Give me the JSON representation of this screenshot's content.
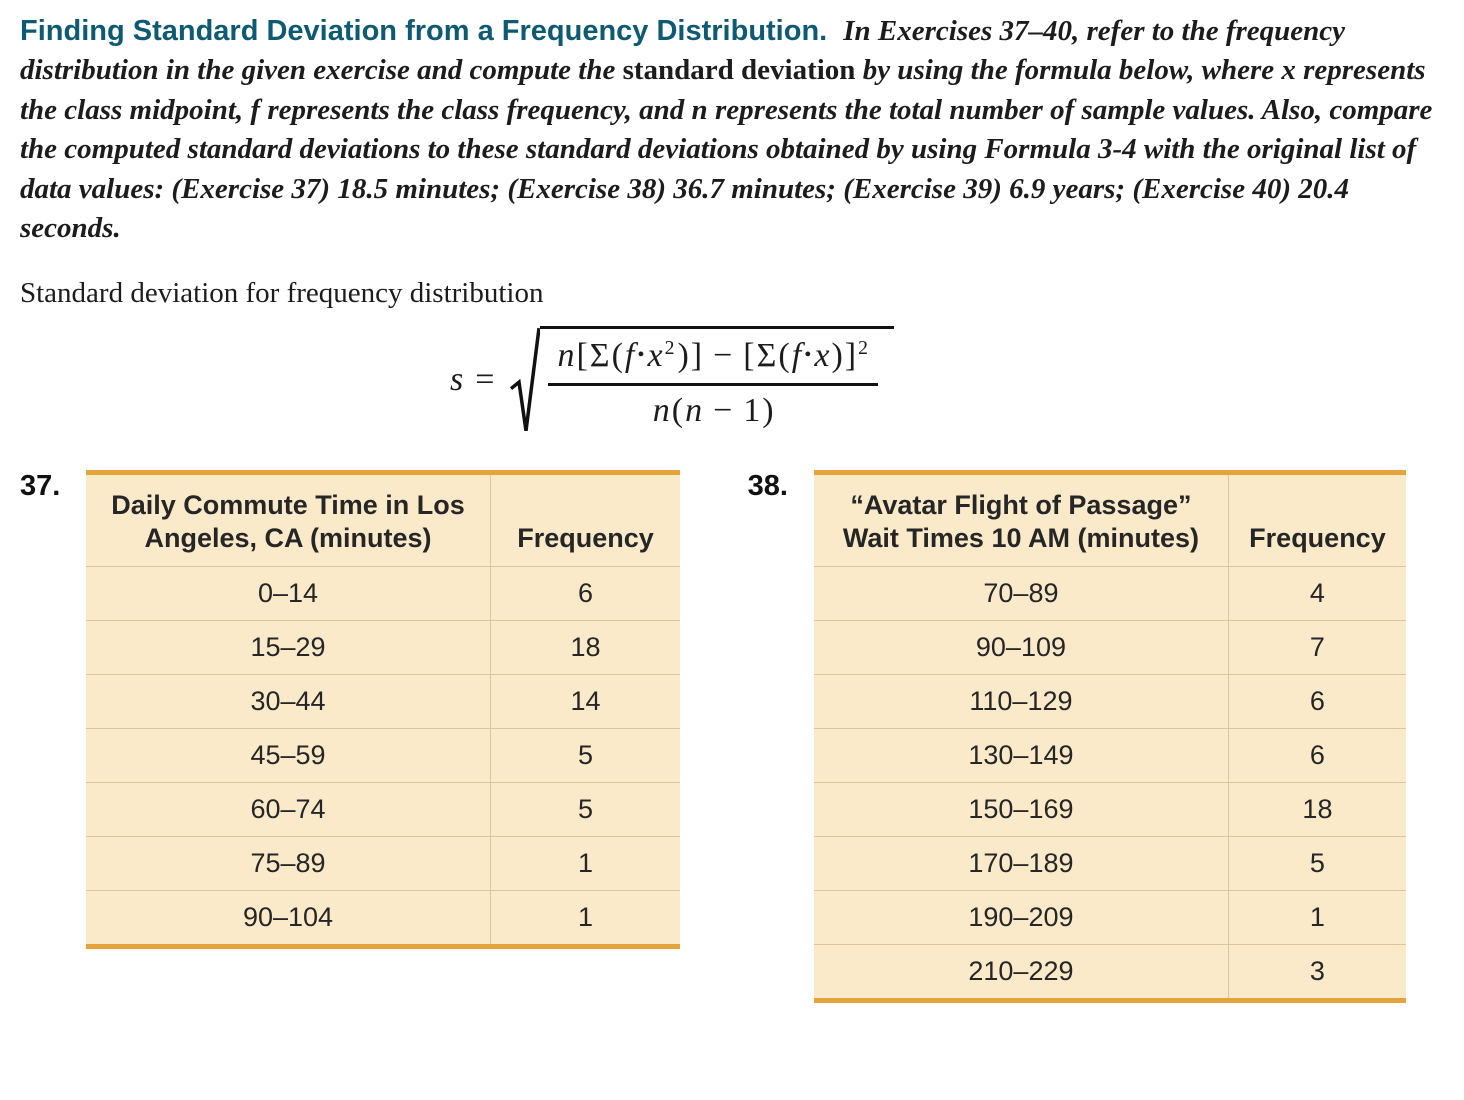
{
  "directions": {
    "lead": "Finding Standard Deviation from a Frequency Distribution.",
    "body_1": "In Exercises 37–40, refer to the frequency distribution in the given exercise and compute the ",
    "term": "standard deviation",
    "body_2": " by using the formula below, where x represents the class midpoint, f represents the class frequency, and n represents the total number of sample values. Also, compare the computed standard deviations to these standard deviations obtained by using Formula 3-4 with the original list of data values: (Exercise 37) 18.5 minutes; (Exercise 38) 36.7 minutes; (Exercise 39) 6.9 years; (Exercise 40) 20.4 seconds."
  },
  "subtitle": "Standard deviation for frequency distribution",
  "formula": {
    "lhs_var": "s",
    "equals": "=",
    "numerator_parts": [
      {
        "text": "n",
        "cls": "var"
      },
      {
        "text": "[",
        "cls": "bracket"
      },
      {
        "text": "Σ",
        "cls": "op"
      },
      {
        "text": "(",
        "cls": "paren"
      },
      {
        "text": "f",
        "cls": "var"
      },
      {
        "text": "•",
        "cls": "dot"
      },
      {
        "text": "x",
        "cls": "var"
      },
      {
        "text": "2",
        "cls": "sup"
      },
      {
        "text": ")",
        "cls": "paren"
      },
      {
        "text": "]",
        "cls": "bracket"
      },
      {
        "text": "−",
        "cls": "minus"
      },
      {
        "text": "[",
        "cls": "bracket"
      },
      {
        "text": "Σ",
        "cls": "op"
      },
      {
        "text": "(",
        "cls": "paren"
      },
      {
        "text": "f",
        "cls": "var"
      },
      {
        "text": "•",
        "cls": "dot"
      },
      {
        "text": "x",
        "cls": "var"
      },
      {
        "text": ")",
        "cls": "paren"
      },
      {
        "text": "]",
        "cls": "bracket"
      },
      {
        "text": "2",
        "cls": "sup"
      }
    ],
    "denominator_parts": [
      {
        "text": "n",
        "cls": "var"
      },
      {
        "text": "(",
        "cls": "paren"
      },
      {
        "text": "n",
        "cls": "var"
      },
      {
        "text": "−",
        "cls": "minus"
      },
      {
        "text": "1",
        "cls": "up"
      },
      {
        "text": ")",
        "cls": "paren"
      }
    ]
  },
  "exercises": [
    {
      "number": "37.",
      "table": {
        "col1_header": "Daily Commute Time in Los Angeles, CA (minutes)",
        "col2_header": "Frequency",
        "rows": [
          {
            "range": "0–14",
            "frequency": "6"
          },
          {
            "range": "15–29",
            "frequency": "18"
          },
          {
            "range": "30–44",
            "frequency": "14"
          },
          {
            "range": "45–59",
            "frequency": "5"
          },
          {
            "range": "60–74",
            "frequency": "5"
          },
          {
            "range": "75–89",
            "frequency": "1"
          },
          {
            "range": "90–104",
            "frequency": "1"
          }
        ]
      }
    },
    {
      "number": "38.",
      "table": {
        "col1_header": "“Avatar Flight of Passage” Wait Times 10 AM (minutes)",
        "col2_header": "Frequency",
        "rows": [
          {
            "range": "70–89",
            "frequency": "4"
          },
          {
            "range": "90–109",
            "frequency": "7"
          },
          {
            "range": "110–129",
            "frequency": "6"
          },
          {
            "range": "130–149",
            "frequency": "6"
          },
          {
            "range": "150–169",
            "frequency": "18"
          },
          {
            "range": "170–189",
            "frequency": "5"
          },
          {
            "range": "190–209",
            "frequency": "1"
          },
          {
            "range": "210–229",
            "frequency": "3"
          }
        ]
      }
    }
  ],
  "colors": {
    "heading_teal": "#0E5A72",
    "table_bg": "#FAEACA",
    "table_border": "#E5A33C",
    "table_line": "#DCC69B",
    "text": "#1C1C1C"
  }
}
